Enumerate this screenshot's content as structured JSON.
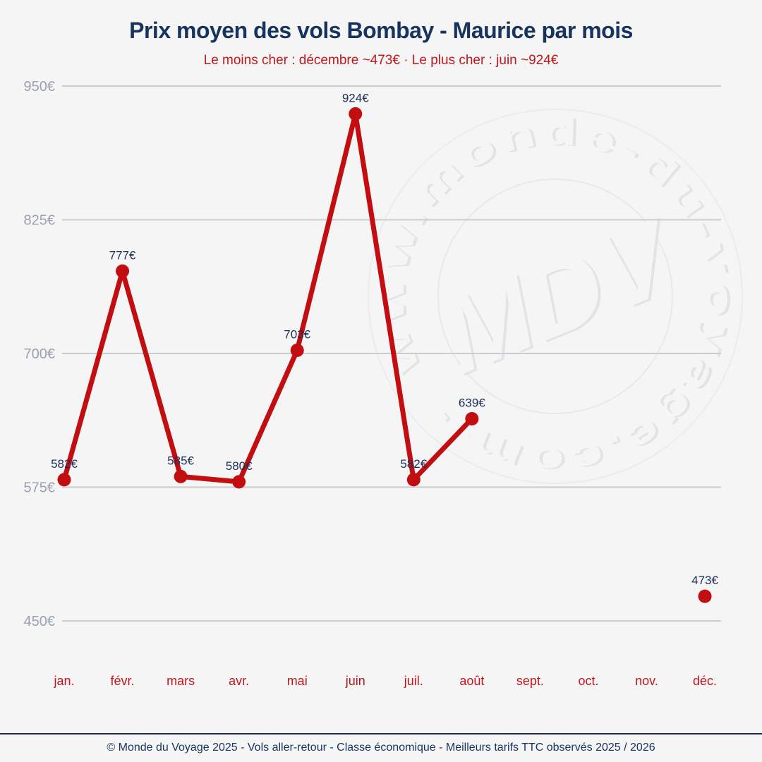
{
  "header": {
    "title": "Prix moyen des vols Bombay - Maurice par mois",
    "subtitle": "Le moins cher : décembre ~473€ · Le plus cher : juin ~924€"
  },
  "chart_data": {
    "type": "line",
    "title": "Prix moyen des vols Bombay - Maurice par mois",
    "subtitle": "Le moins cher : décembre ~473€ · Le plus cher : juin ~924€",
    "categories": [
      "jan.",
      "févr.",
      "mars",
      "avr.",
      "mai",
      "juin",
      "juil.",
      "août",
      "sept.",
      "oct.",
      "nov.",
      "déc."
    ],
    "values": [
      582,
      777,
      585,
      580,
      703,
      924,
      582,
      639,
      null,
      null,
      null,
      473
    ],
    "unit": "€",
    "yticks": [
      950,
      825,
      700,
      575,
      450
    ],
    "ylim": [
      450,
      950
    ],
    "xlabel": "",
    "ylabel": "",
    "grid": true,
    "legend": "none",
    "min_point": {
      "month": "décembre",
      "value": 473
    },
    "max_point": {
      "month": "juin",
      "value": 924
    }
  },
  "watermark": {
    "ring_text": "www.monde-du-voyage.com ·",
    "center_text": "MDV"
  },
  "footer": {
    "text": "© Monde du Voyage 2025 - Vols aller-retour - Classe économique - Meilleurs tarifs TTC observés 2025 / 2026"
  },
  "colors": {
    "background": "#f5f5f6",
    "title_navy": "#16345e",
    "accent_red": "#c3161b",
    "line_red": "#c20d11",
    "grid_gray": "#c9cdd3",
    "tick_gray": "#9aa2b1",
    "label_navy": "#1c2f55",
    "footer_navy": "#1b2c50",
    "watermark_gray": "#d9dbde"
  }
}
